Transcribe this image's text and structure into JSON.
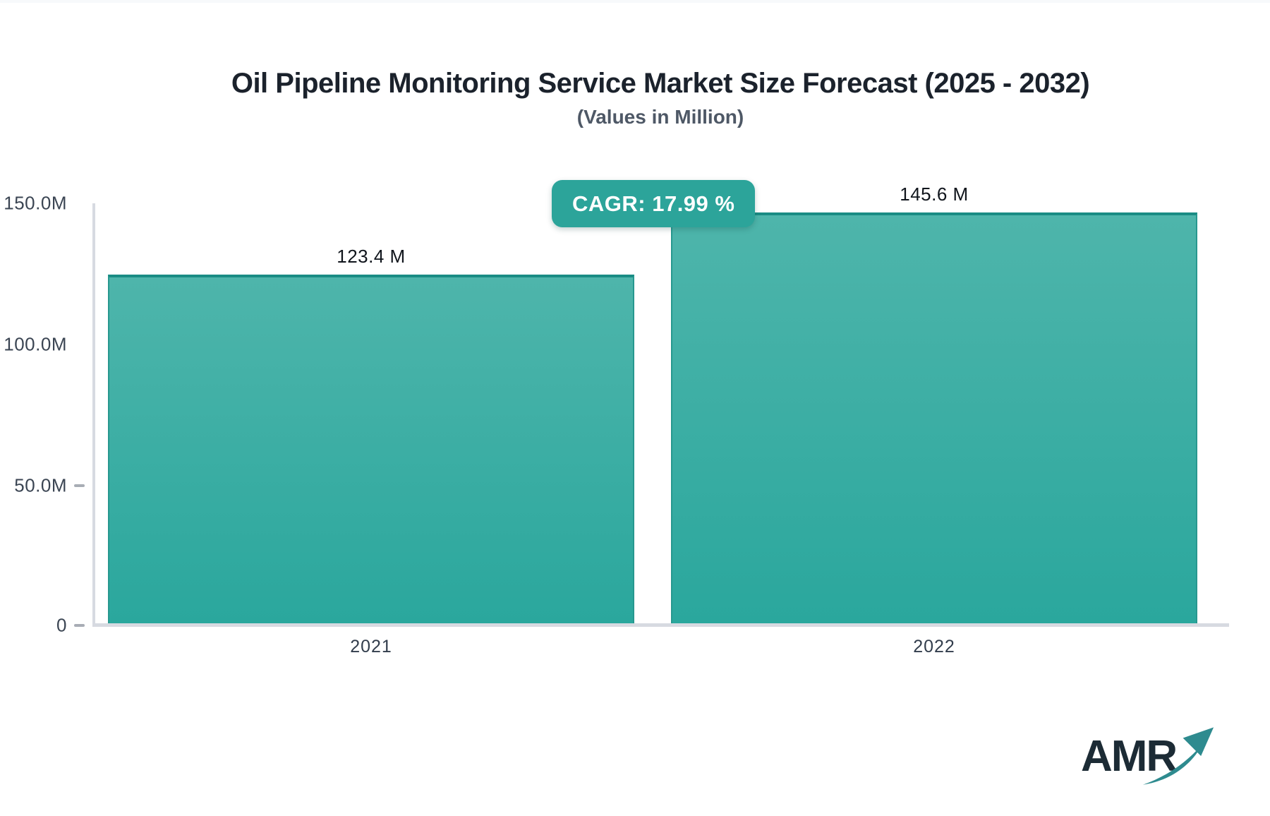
{
  "page": {
    "title": "Oil Pipeline Monitoring Service Market Size Forecast (2025 - 2032)",
    "subtitle": "(Values in Million)",
    "cagr_badge_label": "CAGR: 17.99 %",
    "logo_text": "AMR"
  },
  "chart_data": {
    "type": "bar",
    "title": "Oil Pipeline Monitoring Service Market Size Forecast (2025 - 2032)",
    "subtitle": "(Values in Million)",
    "unit": "Million",
    "categories": [
      "2021",
      "2022"
    ],
    "values": [
      123.4,
      145.6
    ],
    "value_labels": [
      "123.4 M",
      "145.6 M"
    ],
    "cagr_percent": 17.99,
    "ylim": [
      0,
      150
    ],
    "ytick_labels": [
      "150.0M",
      "100.0M",
      "50.0M",
      "0"
    ],
    "grid": "off",
    "legend": "none",
    "colors": {
      "bar_gradient_top": "#4eb5ab",
      "bar_gradient_bottom": "#2aa79d",
      "bar_top_border": "#1a8c84",
      "badge_background": "#2ca49a",
      "axis_line": "#d7dae1",
      "arrow_teal": "#2e8b8f"
    }
  }
}
